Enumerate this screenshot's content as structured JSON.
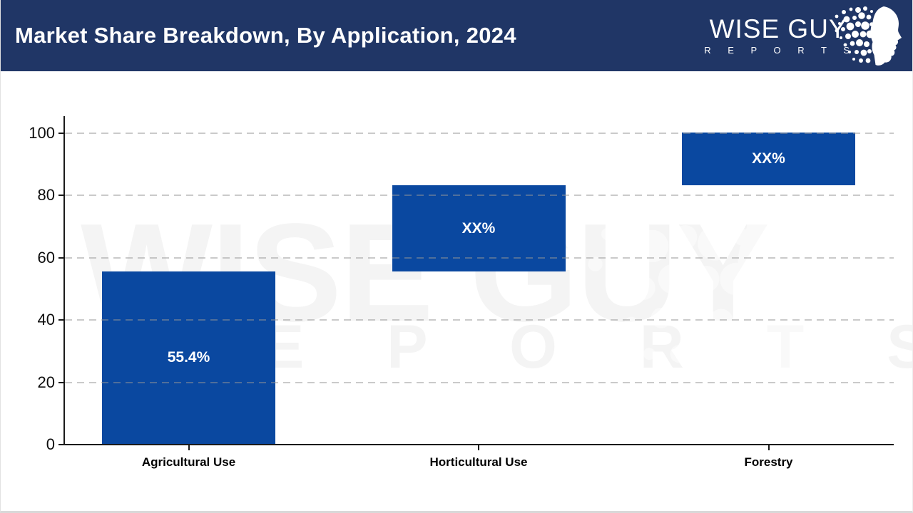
{
  "header": {
    "title": "Market Share Breakdown, By Application, 2024",
    "logo": {
      "line1": "WISE GUY",
      "line2": "R E P O R T S"
    },
    "background_color": "#203666"
  },
  "watermark": {
    "line1": "WISE GUY",
    "line2": "R E P O R T S"
  },
  "chart_data": {
    "type": "bar",
    "subtype": "floating-segment-breakdown",
    "title": "Market Share Breakdown, By Application, 2024",
    "categories": [
      "Agricultural Use",
      "Horticultural Use",
      "Forestry"
    ],
    "series": [
      {
        "name": "Market share (%)",
        "segments": [
          {
            "category": "Agricultural Use",
            "start": 0,
            "end": 55.4,
            "label": "55.4%"
          },
          {
            "category": "Horticultural Use",
            "start": 55.4,
            "end": 83,
            "label": "XX%"
          },
          {
            "category": "Forestry",
            "start": 83,
            "end": 100,
            "label": "XX%"
          }
        ]
      }
    ],
    "xlabel": "",
    "ylabel": "",
    "ylim": [
      0,
      105
    ],
    "yticks": [
      0,
      20,
      40,
      60,
      80,
      100
    ],
    "grid": "horizontal-dashed",
    "legend": "none",
    "bar_color": "#0a48a0",
    "bar_label_color": "#ffffff"
  }
}
